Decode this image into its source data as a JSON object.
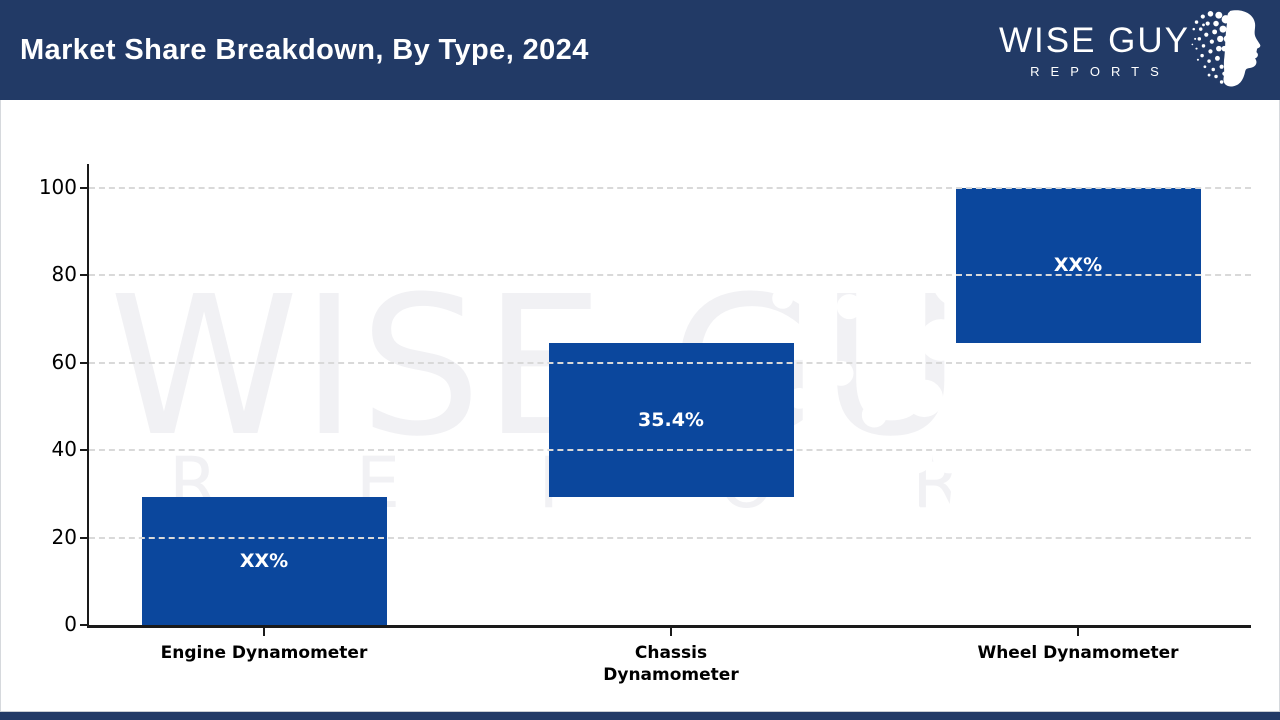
{
  "header": {
    "title": "Market Share Breakdown, By Type, 2024"
  },
  "logo": {
    "line1": "WISE GUY",
    "line2": "REPORTS"
  },
  "watermark": {
    "line1": "WISE GUY",
    "line2": "R E P O R T S"
  },
  "colors": {
    "header_bg": "#223a66",
    "bar": "#0b479d",
    "bar_label": "#ffffff",
    "gridline": "#d9d9d9",
    "axis": "#1a1a1a",
    "watermark": "#f1f1f4"
  },
  "chart_data": {
    "type": "bar",
    "subtype": "floating-segment-waterfall",
    "title": "Market Share Breakdown, By Type, 2024",
    "categories": [
      "Engine Dynamometer",
      "Chassis Dynamometer",
      "Wheel Dynamometer"
    ],
    "category_label_lines": [
      [
        "Engine Dynamometer"
      ],
      [
        "Chassis",
        "Dynamometer"
      ],
      [
        "Wheel Dynamometer"
      ]
    ],
    "segments": [
      {
        "category": "Engine Dynamometer",
        "start": 0,
        "end": 29.2,
        "value_label": "XX%"
      },
      {
        "category": "Chassis Dynamometer",
        "start": 29.2,
        "end": 64.6,
        "value_label": "35.4%"
      },
      {
        "category": "Wheel Dynamometer",
        "start": 64.6,
        "end": 100,
        "value_label": "XX%"
      }
    ],
    "xlabel": "",
    "ylabel": "",
    "y_ticks": [
      0,
      20,
      40,
      60,
      80,
      100
    ],
    "ylim": [
      0,
      105
    ],
    "grid": "horizontal-dashed",
    "gridlines_above_bars": true,
    "legend": "none",
    "bar_color": "#0b479d"
  }
}
